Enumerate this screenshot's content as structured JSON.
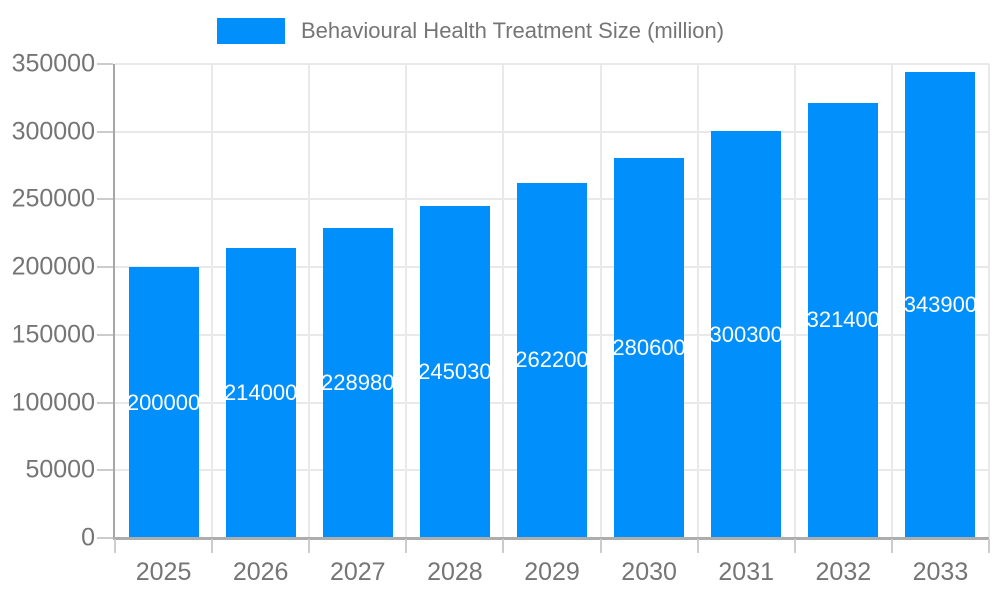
{
  "legend": {
    "label": "Behavioural Health Treatment Size (million)",
    "swatch_color": "#008FFB"
  },
  "chart_data": {
    "type": "bar",
    "title": "Behavioural Health Treatment Size (million)",
    "categories": [
      "2025",
      "2026",
      "2027",
      "2028",
      "2029",
      "2030",
      "2031",
      "2032",
      "2033"
    ],
    "values": [
      200000,
      214000,
      228980,
      245030,
      262200,
      280600,
      300300,
      321400,
      343900
    ],
    "bar_labels": [
      "200000",
      "214000",
      "228980",
      "245030",
      "262200",
      "280600",
      "300300",
      "321400",
      "343900"
    ],
    "xlabel": "",
    "ylabel": "",
    "ylim": [
      0,
      350000
    ],
    "yticks": [
      0,
      50000,
      100000,
      150000,
      200000,
      250000,
      300000,
      350000
    ],
    "ytick_labels": [
      "0",
      "50000",
      "100000",
      "150000",
      "200000",
      "250000",
      "300000",
      "350000"
    ],
    "grid": true,
    "legend_position": "top",
    "colors": {
      "bar": "#008FFB",
      "bar_label_text": "#ffffff",
      "axis_text": "#757575",
      "gridline": "#e9e9e9",
      "axis_line": "#a6a6a6",
      "background": "#ffffff"
    }
  }
}
